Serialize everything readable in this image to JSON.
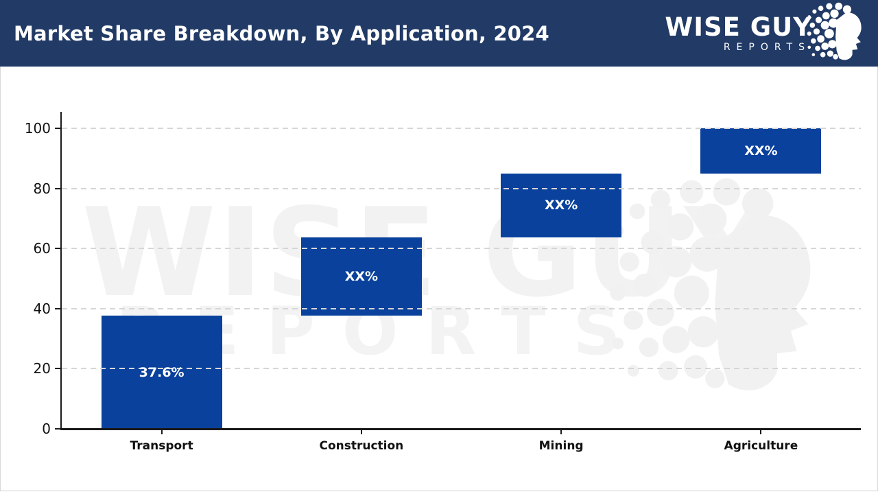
{
  "header": {
    "title": "Market Share Breakdown, By Application, 2024",
    "background_color": "#213A66",
    "logo": {
      "line1": "WISE GUY",
      "line2": "REPORTS",
      "head_icon": "dotted-head-profile-icon"
    }
  },
  "watermark": {
    "line1": "WISE GUY",
    "line2": "REPORTS",
    "color": "#F2F2F2"
  },
  "chart_data": {
    "type": "bar",
    "subtype": "waterfall",
    "title": "Market Share Breakdown, By Application, 2024",
    "xlabel": "",
    "ylabel": "",
    "ylim": [
      0,
      100
    ],
    "yticks": [
      0,
      20,
      40,
      60,
      80,
      100
    ],
    "grid": "horizontal-dashed",
    "legend": null,
    "bar_color": "#09419C",
    "bar_label_color": "#FFFFFF",
    "categories": [
      "Transport",
      "Construction",
      "Mining",
      "Agriculture"
    ],
    "segments": [
      {
        "category": "Transport",
        "start": 0,
        "end": 37.6,
        "label": "37.6%"
      },
      {
        "category": "Construction",
        "start": 37.6,
        "end": 63.8,
        "label": "XX%"
      },
      {
        "category": "Mining",
        "start": 63.8,
        "end": 84.9,
        "label": "XX%"
      },
      {
        "category": "Agriculture",
        "start": 84.9,
        "end": 100,
        "label": "XX%"
      }
    ]
  }
}
